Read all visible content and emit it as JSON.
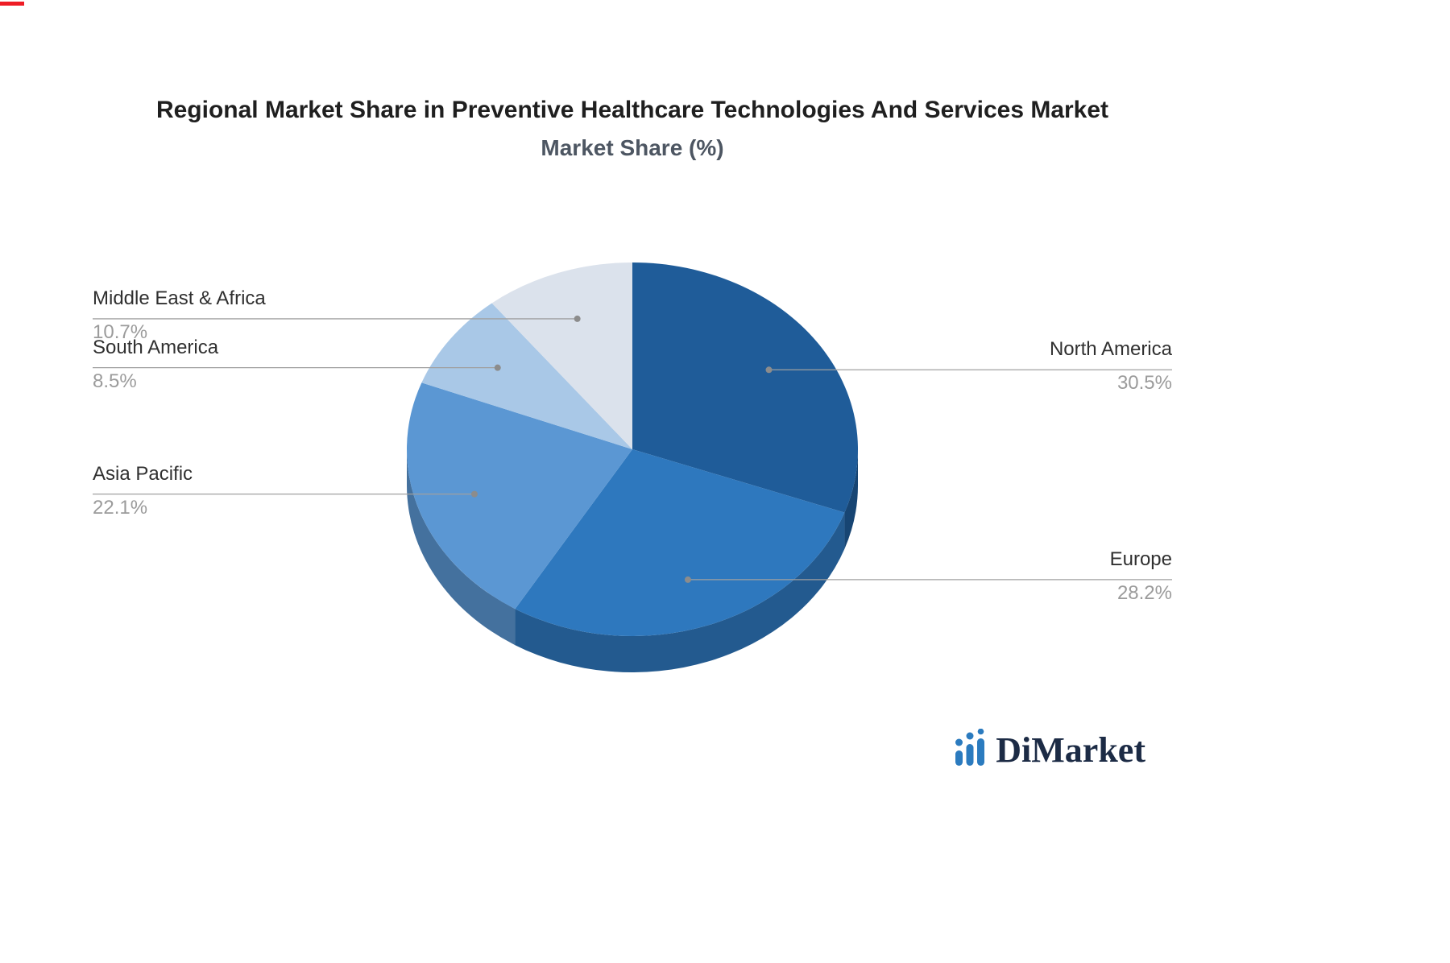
{
  "chart_data": {
    "type": "pie",
    "style": "3d",
    "title": "Regional Market Share in Preventive Healthcare Technologies And Services Market",
    "subtitle": "Market Share (%)",
    "unit": "%",
    "labels": [
      "North America",
      "Europe",
      "Asia Pacific",
      "South America",
      "Middle East & Africa"
    ],
    "values": [
      30.5,
      28.2,
      22.1,
      8.5,
      10.7
    ],
    "percent_labels": [
      "30.5%",
      "28.2%",
      "22.1%",
      "8.5%",
      "10.7%"
    ],
    "colors": [
      "#1F5C99",
      "#2E78BE",
      "#5B97D3",
      "#A9C8E7",
      "#DBE2EC"
    ],
    "start_angle_deg": 0,
    "direction": "clockwise",
    "legend": "none",
    "label_sides": [
      "right",
      "right",
      "left",
      "left",
      "left"
    ]
  },
  "logo": {
    "text": "DiMarket",
    "icon": "bar-chart-logo-icon",
    "icon_color": "#2B7BBF",
    "text_color": "#1C2B45"
  }
}
